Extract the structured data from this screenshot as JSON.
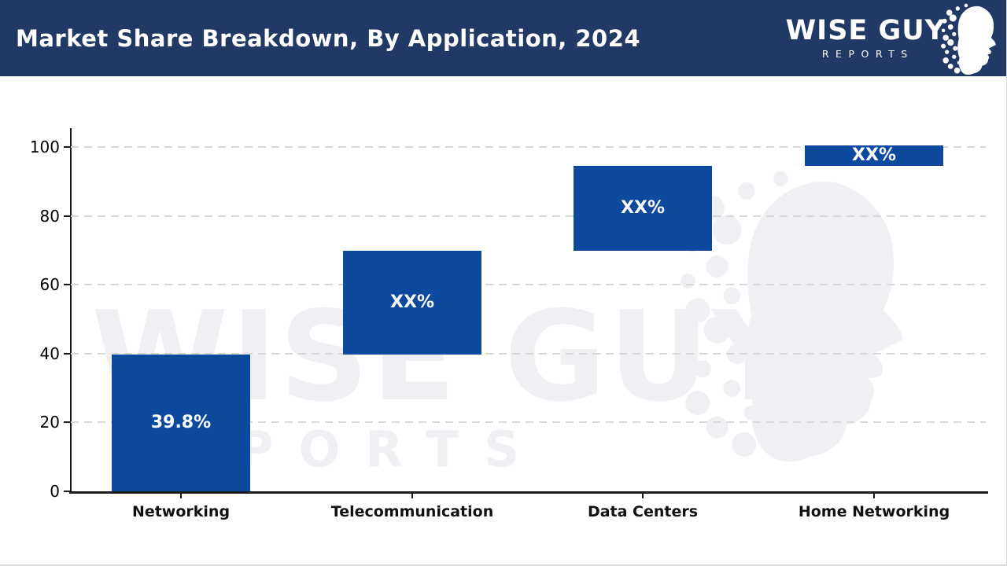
{
  "header": {
    "title": "Market Share Breakdown, By Application, 2024",
    "background_color": "#213965",
    "logo": {
      "wordmark": "WISE GUY",
      "subtext": "REPORTS"
    }
  },
  "watermark": {
    "wordmark": "WISE GUY",
    "subtext": "REPORTS"
  },
  "chart_data": {
    "type": "bar",
    "subtype": "waterfall",
    "title": "Market Share Breakdown, By Application, 2024",
    "categories": [
      "Networking",
      "Telecommunication",
      "Data Centers",
      "Home Networking"
    ],
    "segments": [
      {
        "category": "Networking",
        "start": 0,
        "end": 39.8,
        "share": 39.8,
        "value_display": "39.8%"
      },
      {
        "category": "Telecommunication",
        "start": 39.8,
        "end": 69.8,
        "share": 30.0,
        "value_display": "XX%"
      },
      {
        "category": "Data Centers",
        "start": 69.8,
        "end": 94.5,
        "share": 24.7,
        "value_display": "XX%"
      },
      {
        "category": "Home Networking",
        "start": 94.5,
        "end": 100.5,
        "share": 6.0,
        "value_display": "XX%"
      }
    ],
    "values_note": "Segment start/end estimated from y-axis; XX% are placeholder labels shown in the image",
    "yticks": [
      0,
      20,
      40,
      60,
      80,
      100
    ],
    "ylim": [
      0,
      105
    ],
    "xlabel": "",
    "ylabel": "",
    "bar_color": "#0d4a9e",
    "bar_label_color": "#ffffff",
    "grid": "horizontal-dashed",
    "gridline_color": "#d8d8d8",
    "legend_position": "none"
  }
}
